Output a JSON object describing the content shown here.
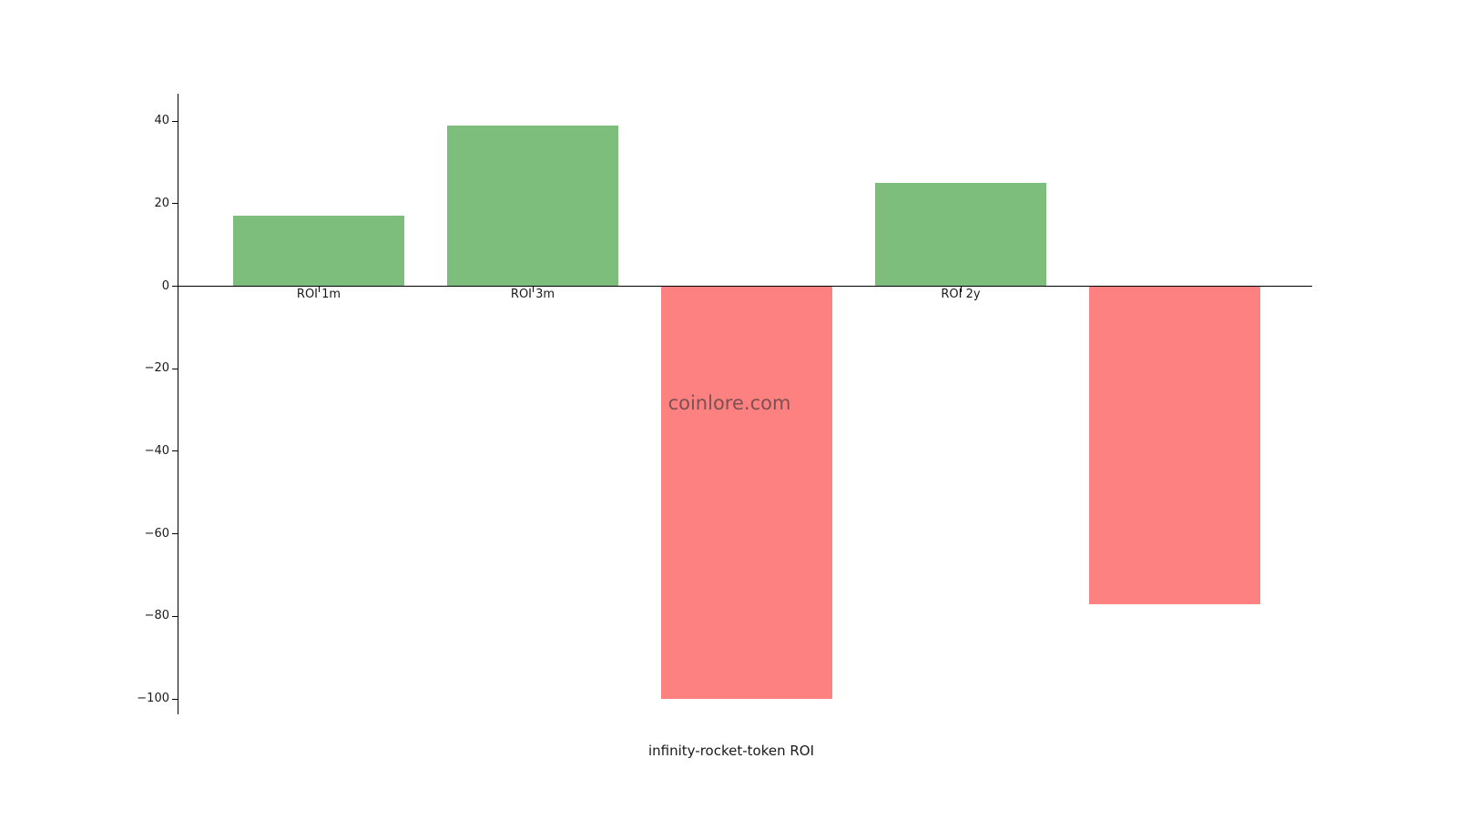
{
  "chart_data": {
    "type": "bar",
    "title": "infinity-rocket-token ROI",
    "watermark": "coinlore.com",
    "categories": [
      "ROI 1m",
      "ROI 3m",
      "",
      "ROI 2y",
      ""
    ],
    "values": [
      17,
      39,
      -100,
      25,
      -77
    ],
    "bar_colors": [
      "#7DBE7D",
      "#7DBE7D",
      "#FE8181",
      "#7DBE7D",
      "#FE8181"
    ],
    "positive_color": "#7DBE7D",
    "negative_color": "#FE8181",
    "y_ticks": [
      {
        "label": "40",
        "value": 40
      },
      {
        "label": "20",
        "value": 20
      },
      {
        "label": "0",
        "value": 0
      },
      {
        "label": "−20",
        "value": -20
      },
      {
        "label": "−40",
        "value": -40
      },
      {
        "label": "−60",
        "value": -60
      },
      {
        "label": "−80",
        "value": -80
      },
      {
        "label": "−100",
        "value": -100
      }
    ],
    "ylim": [
      -104,
      46.5
    ],
    "xlabel": "",
    "ylabel": "",
    "grid": false,
    "legend": null
  }
}
